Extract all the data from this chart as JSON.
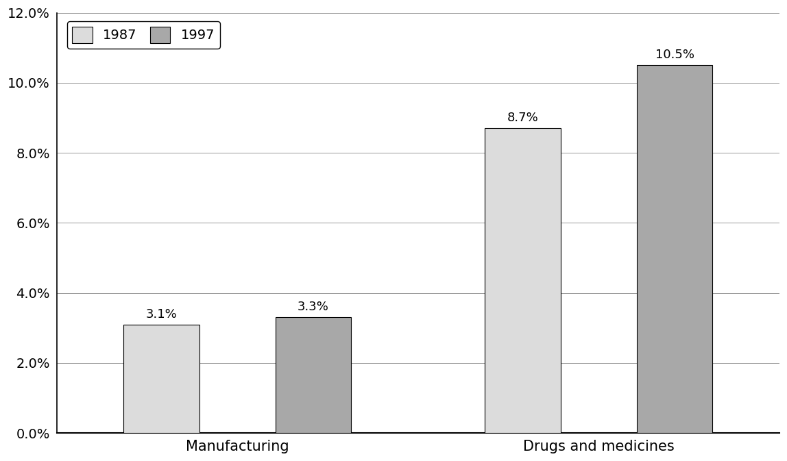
{
  "categories": [
    "Manufacturing",
    "Drugs and medicines"
  ],
  "values_1987": [
    3.1,
    8.7
  ],
  "values_1997": [
    3.3,
    10.5
  ],
  "labels_1987": [
    "3.1%",
    "8.7%"
  ],
  "labels_1997": [
    "3.3%",
    "10.5%"
  ],
  "color_1987": "#dcdcdc",
  "color_1997": "#a8a8a8",
  "legend_labels": [
    "1987",
    "1997"
  ],
  "ylim": [
    0,
    12.0
  ],
  "yticks": [
    0.0,
    2.0,
    4.0,
    6.0,
    8.0,
    10.0,
    12.0
  ],
  "ytick_labels": [
    "0.0%",
    "2.0%",
    "4.0%",
    "6.0%",
    "8.0%",
    "10.0%",
    "12.0%"
  ],
  "bar_width": 0.42,
  "group_centers": [
    1.0,
    3.0
  ],
  "xlim": [
    0,
    4.0
  ],
  "background_color": "#ffffff",
  "grid_color": "#888888",
  "bar_edge_color": "#000000",
  "tick_fontsize": 14,
  "legend_fontsize": 14,
  "annotation_fontsize": 13,
  "xtick_fontsize": 15
}
